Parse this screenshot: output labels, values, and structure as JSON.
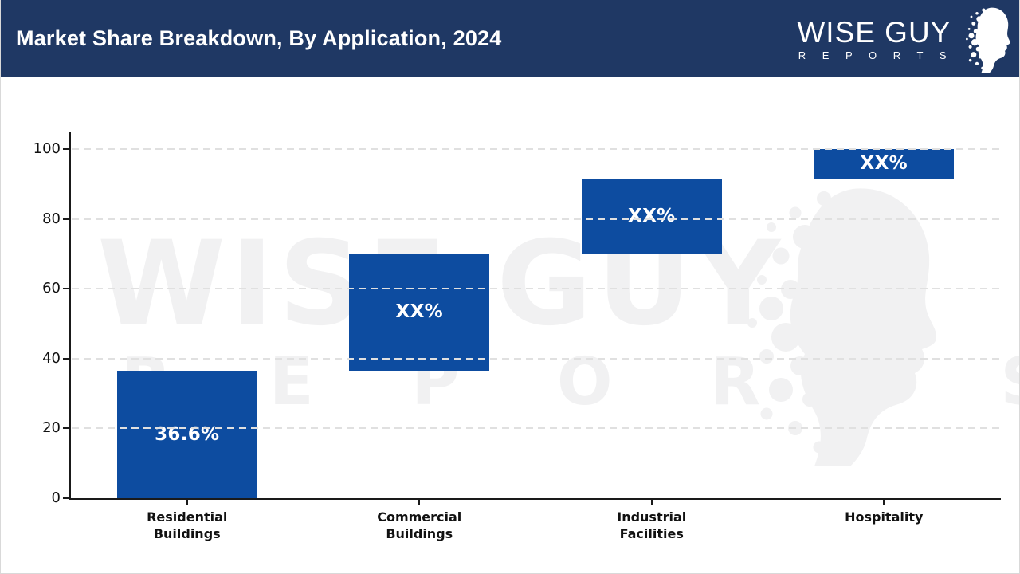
{
  "header": {
    "title": "Market Share Breakdown, By Application, 2024",
    "bg_color": "#1f3864",
    "logo": {
      "name": "WISE GUY",
      "sub": "R E P O R T S"
    }
  },
  "watermark": {
    "name": "WISE GUY",
    "sub": "R E P O R T S"
  },
  "chart_data": {
    "type": "bar",
    "subtype": "floating-waterfall-segments",
    "title": "Market Share Breakdown, By Application, 2024",
    "xlabel": "",
    "ylabel": "",
    "ylim": [
      0,
      100
    ],
    "yticks": [
      0,
      20,
      40,
      60,
      80,
      100
    ],
    "grid": "horizontal-dashed",
    "legend": "none",
    "bar_color": "#0d4ca0",
    "bar_label_color": "#ffffff",
    "categories": [
      "Residential Buildings",
      "Commercial Buildings",
      "Industrial Facilities",
      "Hospitality"
    ],
    "category_label_lines": [
      [
        "Residential",
        "Buildings"
      ],
      [
        "Commercial",
        "Buildings"
      ],
      [
        "Industrial",
        "Facilities"
      ],
      [
        "Hospitality"
      ]
    ],
    "bars": [
      {
        "category": "Residential Buildings",
        "label": "36.6%",
        "start": 0,
        "end": 36.6
      },
      {
        "category": "Commercial Buildings",
        "label": "XX%",
        "start": 36.6,
        "end": 70.2
      },
      {
        "category": "Industrial Facilities",
        "label": "XX%",
        "start": 70.2,
        "end": 91.6
      },
      {
        "category": "Hospitality",
        "label": "XX%",
        "start": 91.6,
        "end": 100
      }
    ]
  }
}
